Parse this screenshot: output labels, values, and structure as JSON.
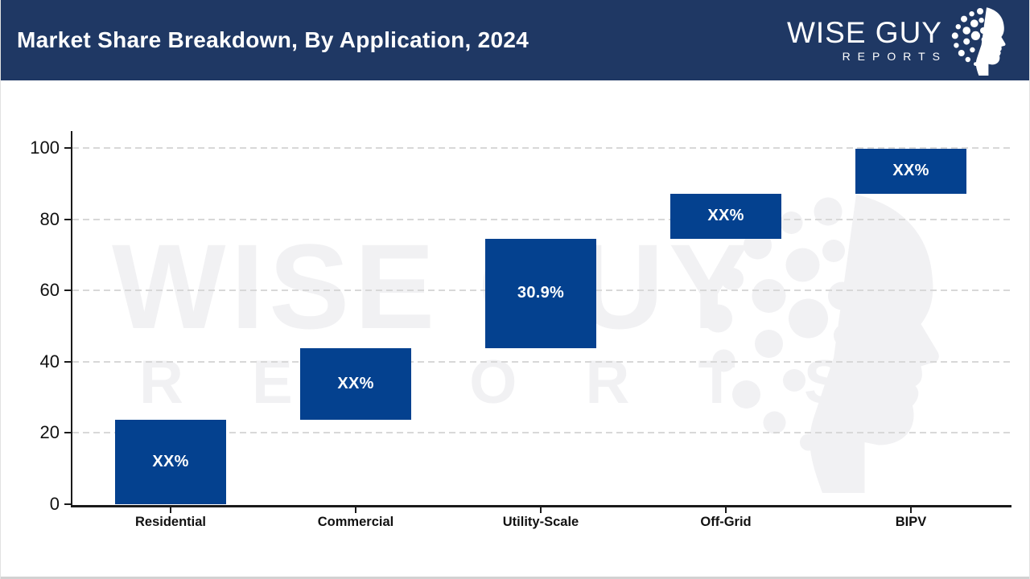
{
  "header": {
    "title": "Market Share Breakdown, By Application, 2024",
    "logo": {
      "line1": "WISE GUY",
      "line2": "REPORTS"
    }
  },
  "watermark": {
    "line1": "WISE GUY",
    "line2": "R E P O R T S"
  },
  "colors": {
    "header_bg": "#1f3864",
    "bar": "#04418f",
    "axis": "#1a1a1a",
    "grid": "#d8d8d8",
    "watermark": "#f1f1f3"
  },
  "chart_data": {
    "type": "bar",
    "subtype": "waterfall",
    "title": "Market Share Breakdown, By Application, 2024",
    "categories": [
      "Residential",
      "Commercial",
      "Utility-Scale",
      "Off-Grid",
      "BIPV"
    ],
    "segments": [
      {
        "category": "Residential",
        "start": 0,
        "end": 23.8,
        "label": "XX%"
      },
      {
        "category": "Commercial",
        "start": 23.8,
        "end": 43.7,
        "label": "XX%"
      },
      {
        "category": "Utility-Scale",
        "start": 43.7,
        "end": 74.6,
        "label": "30.9%"
      },
      {
        "category": "Off-Grid",
        "start": 74.6,
        "end": 87.2,
        "label": "XX%"
      },
      {
        "category": "BIPV",
        "start": 87.2,
        "end": 99.8,
        "label": "XX%"
      }
    ],
    "y_ticks": [
      0,
      20,
      40,
      60,
      80,
      100
    ],
    "ylim": [
      0,
      105
    ],
    "xlabel": "",
    "ylabel": "",
    "legend": "none",
    "grid": "horizontal-dashed",
    "bar_color": "#04418f",
    "value_label_color": "#ffffff"
  }
}
